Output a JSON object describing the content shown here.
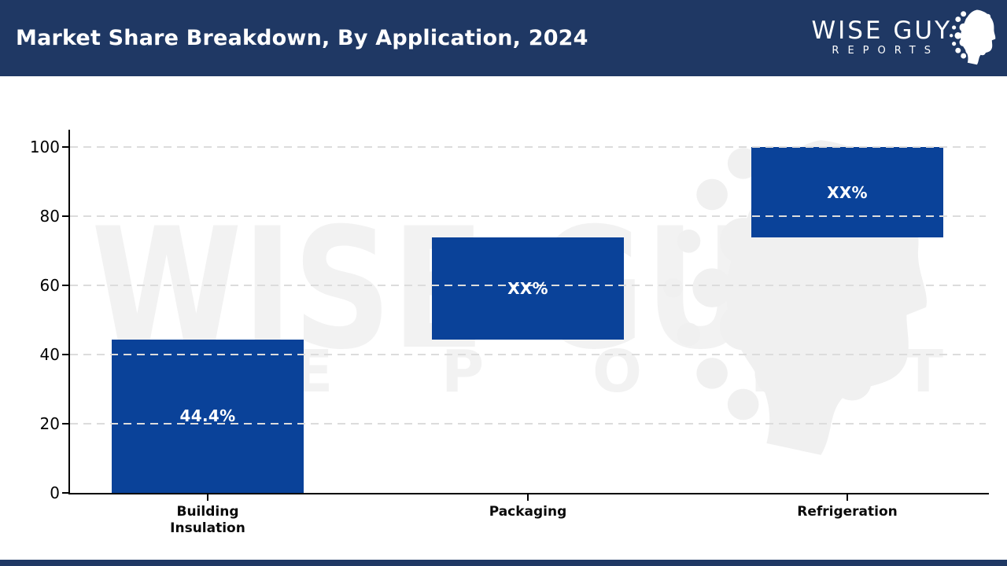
{
  "header": {
    "title": "Market Share Breakdown, By Application, 2024",
    "bg_color": "#1f3864",
    "logo": {
      "name": "WISE GUY",
      "sub": "REPORTS",
      "icon": "dotted-face-profile"
    }
  },
  "watermark": {
    "line1": "WISE GUY",
    "line2": "R E P O R T S"
  },
  "chart_data": {
    "type": "bar",
    "variant": "floating-waterfall",
    "title": "Market Share Breakdown, By Application, 2024",
    "categories": [
      "Building\nInsulation",
      "Packaging",
      "Refrigeration"
    ],
    "segments": [
      {
        "category": "Building Insulation",
        "start": 0,
        "end": 44.4,
        "label": "44.4%"
      },
      {
        "category": "Packaging",
        "start": 44.4,
        "end": 73.8,
        "label": "XX%"
      },
      {
        "category": "Refrigeration",
        "start": 73.8,
        "end": 100,
        "label": "XX%"
      }
    ],
    "xlabel": "",
    "ylabel": "",
    "yticks": [
      0,
      20,
      40,
      60,
      80,
      100
    ],
    "ylim": [
      0,
      105
    ],
    "grid": {
      "axis": "y",
      "style": "dashed",
      "on": true
    },
    "legend": "none",
    "colors": {
      "bar": "#0a4299",
      "grid": "#dcdcdc",
      "axis": "#000000",
      "bar_label": "#ffffff",
      "tick_label": "#000000"
    }
  }
}
